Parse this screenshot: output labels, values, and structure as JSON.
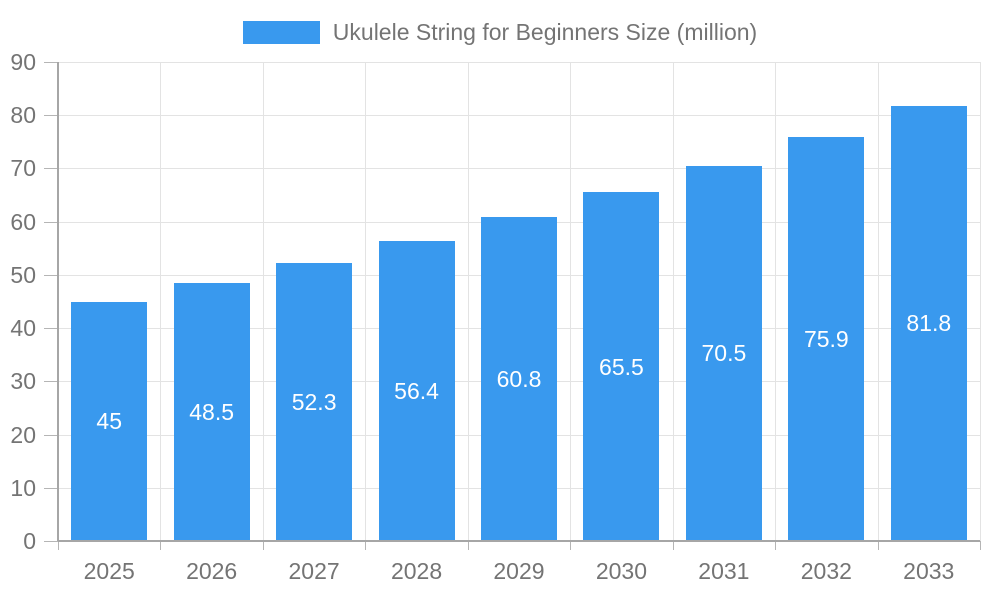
{
  "chart_data": {
    "type": "bar",
    "title": "",
    "legend": "Ukulele String for Beginners Size (million)",
    "legend_position": "top",
    "categories": [
      "2025",
      "2026",
      "2027",
      "2028",
      "2029",
      "2030",
      "2031",
      "2032",
      "2033"
    ],
    "values": [
      45,
      48.5,
      52.3,
      56.4,
      60.8,
      65.5,
      70.5,
      75.9,
      81.8
    ],
    "value_labels": [
      "45",
      "48.5",
      "52.3",
      "56.4",
      "60.8",
      "65.5",
      "70.5",
      "75.9",
      "81.8"
    ],
    "xlabel": "",
    "ylabel": "",
    "ylim": [
      0,
      90
    ],
    "ytick_step": 10,
    "ytick_labels": [
      "0",
      "10",
      "20",
      "30",
      "40",
      "50",
      "60",
      "70",
      "80",
      "90"
    ],
    "grid": true,
    "colors": {
      "bar": "#3999ee",
      "bar_label": "#ffffff",
      "axis": "#a6a6a6",
      "gridline": "#e3e3e3",
      "tick": "#b5b5b5",
      "text": "#747474",
      "background": "#ffffff"
    }
  }
}
